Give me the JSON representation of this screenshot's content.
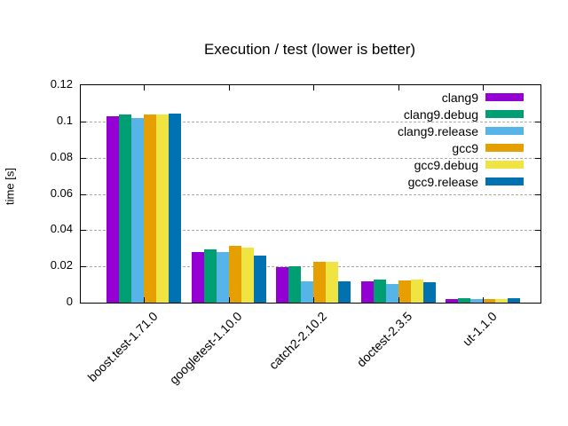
{
  "chart_data": {
    "type": "bar",
    "title": "Execution / test (lower is better)",
    "xlabel": "",
    "ylabel": "time [s]",
    "ylim": [
      0,
      0.12
    ],
    "grid": true,
    "legend_position": "top-right-inside",
    "ytick_values": [
      0,
      0.02,
      0.04,
      0.06,
      0.08,
      0.1,
      0.12
    ],
    "ytick_labels": [
      "0",
      "0.02",
      "0.04",
      "0.06",
      "0.08",
      "0.1",
      "0.12"
    ],
    "categories": [
      "boost.test-1.71.0",
      "googletest-1.10.0",
      "catch2-2.10.2",
      "doctest-2.3.5",
      "ut-1.1.0"
    ],
    "series": [
      {
        "name": "clang9",
        "color": "#9400d3",
        "values": [
          0.1027,
          0.0278,
          0.0198,
          0.0118,
          0.0022
        ]
      },
      {
        "name": "clang9.debug",
        "color": "#009e73",
        "values": [
          0.1038,
          0.0296,
          0.02,
          0.0127,
          0.0023
        ]
      },
      {
        "name": "clang9.release",
        "color": "#56b4e9",
        "values": [
          0.1018,
          0.0279,
          0.0117,
          0.0104,
          0.0021
        ]
      },
      {
        "name": "gcc9",
        "color": "#e69f00",
        "values": [
          0.1036,
          0.0315,
          0.0225,
          0.0124,
          0.0022
        ]
      },
      {
        "name": "gcc9.debug",
        "color": "#f0e442",
        "values": [
          0.1036,
          0.0306,
          0.0224,
          0.0126,
          0.0021
        ]
      },
      {
        "name": "gcc9.release",
        "color": "#0072b2",
        "values": [
          0.1042,
          0.0262,
          0.0116,
          0.0113,
          0.0024
        ]
      }
    ]
  }
}
